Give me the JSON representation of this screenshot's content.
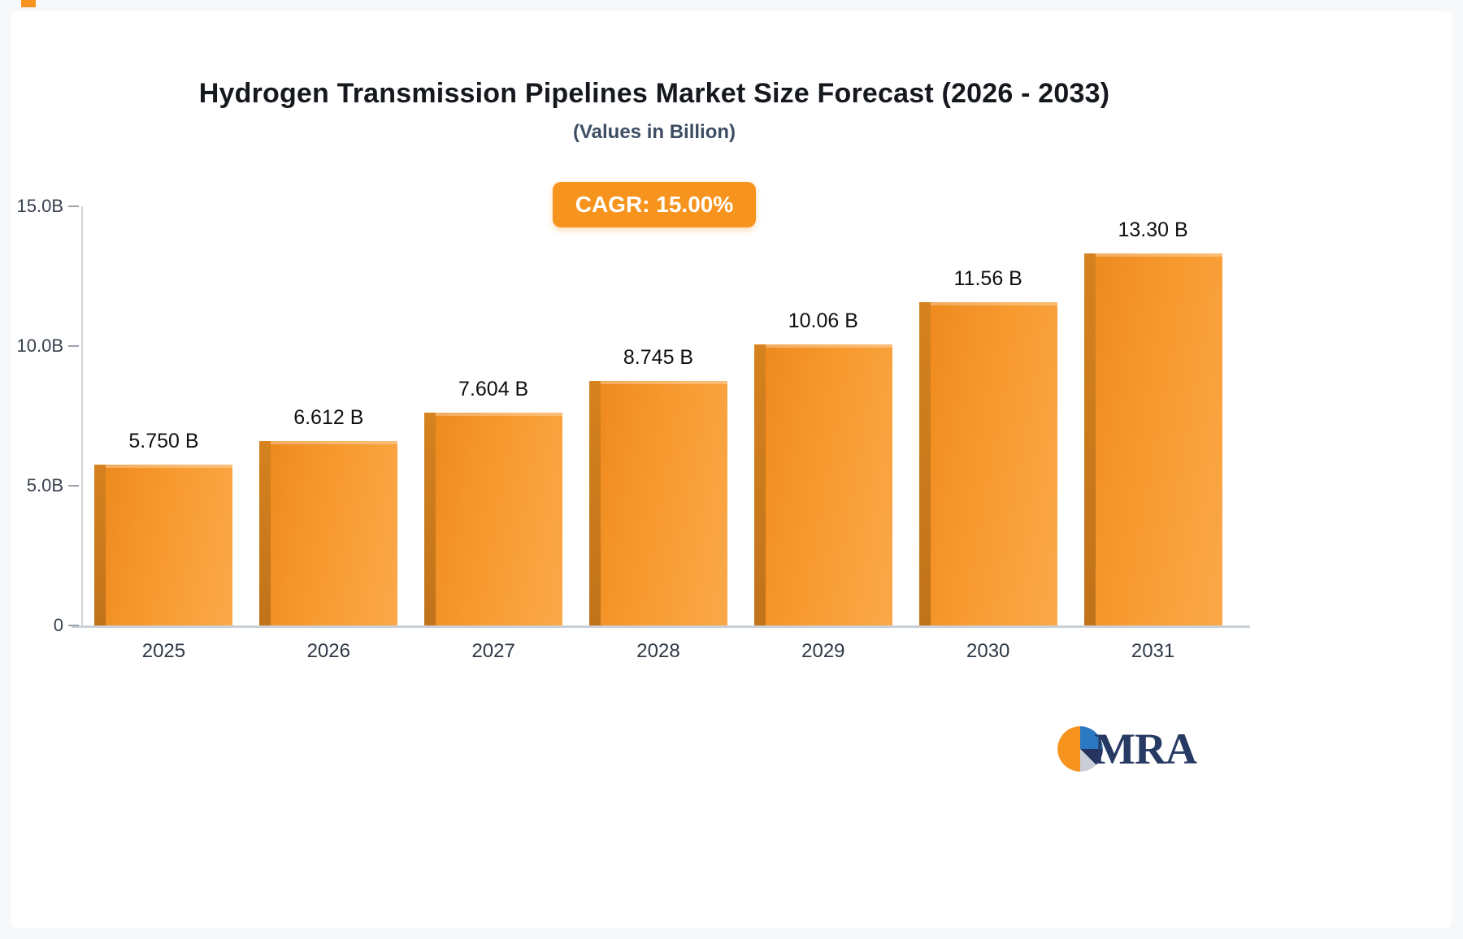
{
  "chart_data": {
    "type": "bar",
    "title": "Hydrogen Transmission Pipelines Market Size Forecast (2026 - 2033)",
    "subtitle": "(Values in Billion)",
    "cagr_label": "CAGR: 15.00%",
    "categories": [
      "2025",
      "2026",
      "2027",
      "2028",
      "2029",
      "2030",
      "2031"
    ],
    "values": [
      5.75,
      6.612,
      7.604,
      8.745,
      10.06,
      11.56,
      13.3
    ],
    "value_labels": [
      "5.750 B",
      "6.612 B",
      "7.604 B",
      "8.745 B",
      "10.06 B",
      "11.56 B",
      "13.30 B"
    ],
    "xlabel": "",
    "ylabel": "",
    "ylim": [
      0,
      15
    ],
    "yticks": [
      {
        "label": "15.0B",
        "value": 15
      },
      {
        "label": "10.0B",
        "value": 10
      },
      {
        "label": "5.0B",
        "value": 5
      },
      {
        "label": "0",
        "value": 0
      }
    ],
    "grid": false,
    "legend": false,
    "bar_color": "#F7941E",
    "bar_side_color": "#C8761C",
    "badge_color": "#F7941E"
  },
  "logo": {
    "text": "MRA",
    "colors": {
      "orange": "#F6921E",
      "blue": "#2B79C2",
      "navy": "#27335F",
      "gray": "#C9CED8"
    }
  }
}
